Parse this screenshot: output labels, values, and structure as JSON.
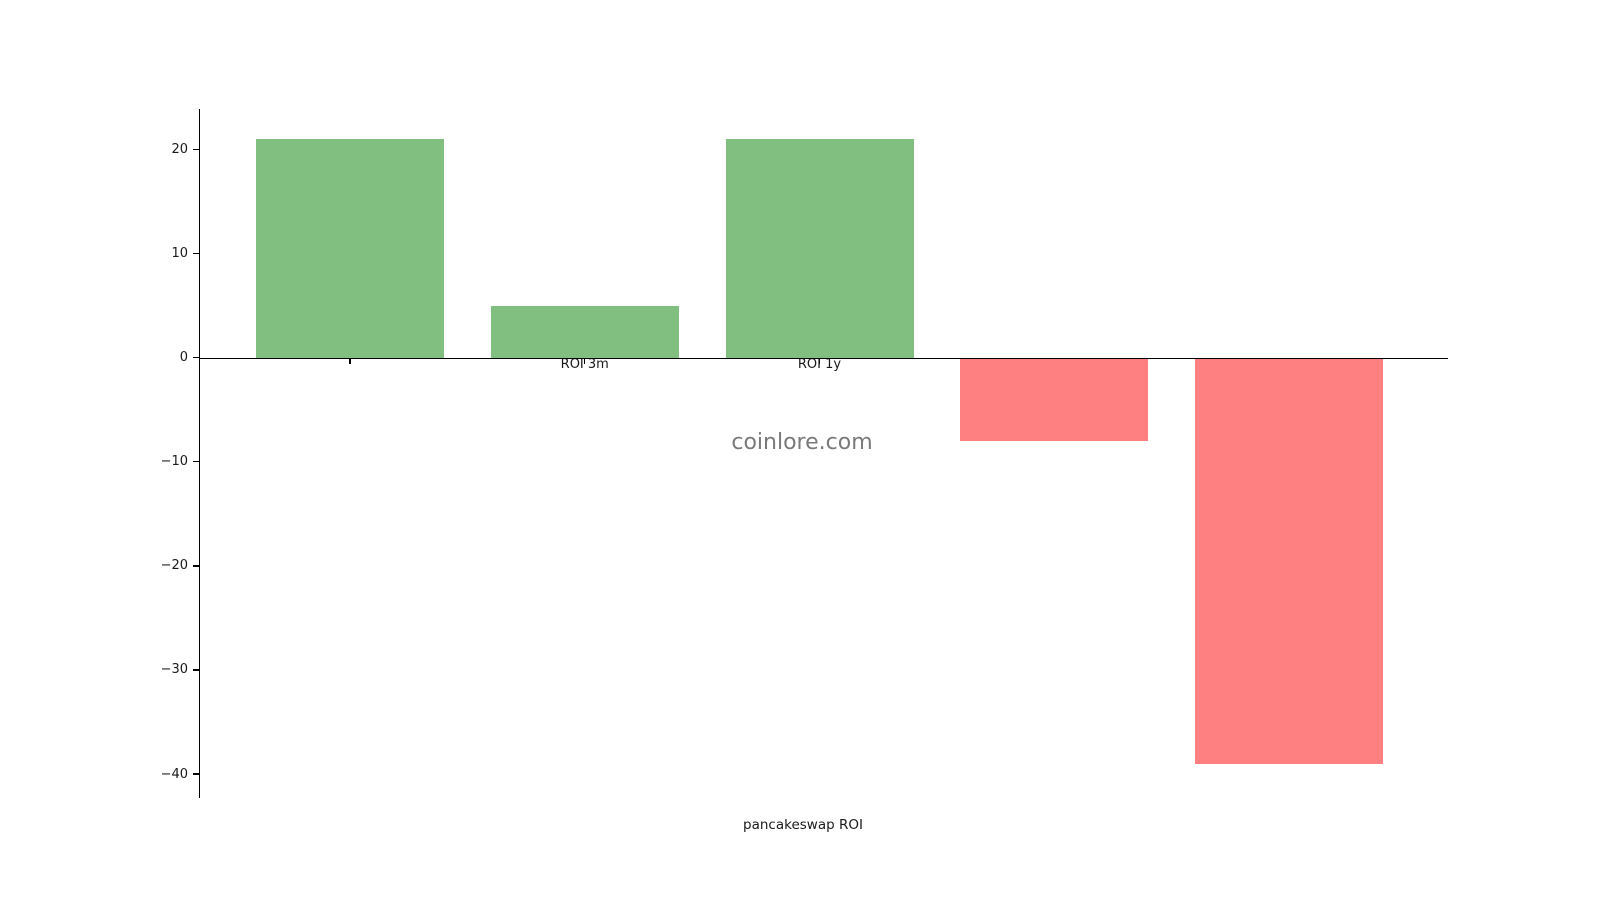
{
  "chart_data": {
    "type": "bar",
    "title": "",
    "xlabel": "pancakeswap ROI",
    "ylabel": "",
    "watermark": "coinlore.com",
    "categories": [
      "",
      "ROI 3m",
      "ROI 1y",
      "",
      ""
    ],
    "values": [
      21,
      5,
      21,
      -8,
      -39
    ],
    "yticks": [
      20,
      10,
      0,
      -10,
      -20,
      -30,
      -40
    ],
    "ytick_labels": [
      "20",
      "10",
      "0",
      "−10",
      "−20",
      "−30",
      "−40"
    ],
    "ylim": [
      -42.3,
      23.9
    ],
    "grid": false,
    "legend": false,
    "colors": {
      "positive": "#80bf80",
      "negative": "#ff8080",
      "axis": "#000000",
      "tick_text": "#1a1a1a",
      "watermark_text": "#7a7a7a",
      "background": "#ffffff"
    }
  }
}
